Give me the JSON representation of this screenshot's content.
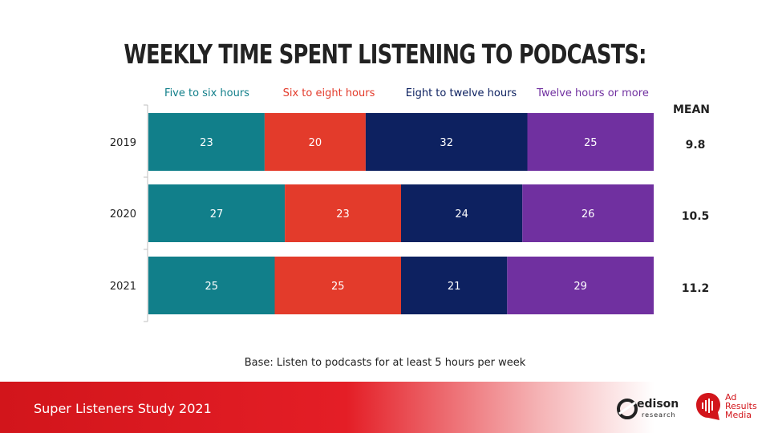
{
  "title": "Weekly time spent listening to podcasts:",
  "mean_header": "MEAN",
  "base_note": "Base: Listen to podcasts for at least 5 hours per week",
  "footer": {
    "study": "Super Listeners Study 2021",
    "edison_logo": "edison",
    "edison_sub": "research",
    "arm_line1": "Ad",
    "arm_line2": "Results",
    "arm_line3": "Media"
  },
  "colors": {
    "five_to_six": "#117f8a",
    "six_to_eight": "#e33b2b",
    "eight_to_twelve": "#0d2160",
    "twelve_plus": "#7030a0"
  },
  "chart_data": {
    "type": "bar",
    "orientation": "horizontal",
    "stacked": true,
    "normalized_to": 100,
    "categories": [
      "2019",
      "2020",
      "2021"
    ],
    "series": [
      {
        "name": "Five to six hours",
        "values": [
          23,
          27,
          25
        ],
        "color": "#117f8a"
      },
      {
        "name": "Six to eight hours",
        "values": [
          20,
          23,
          25
        ],
        "color": "#e33b2b"
      },
      {
        "name": "Eight to twelve hours",
        "values": [
          32,
          24,
          21
        ],
        "color": "#0d2160"
      },
      {
        "name": "Twelve hours or more",
        "values": [
          25,
          26,
          29
        ],
        "color": "#7030a0"
      }
    ],
    "mean": [
      9.8,
      10.5,
      11.2
    ],
    "legend_position": "top",
    "grid": false
  }
}
